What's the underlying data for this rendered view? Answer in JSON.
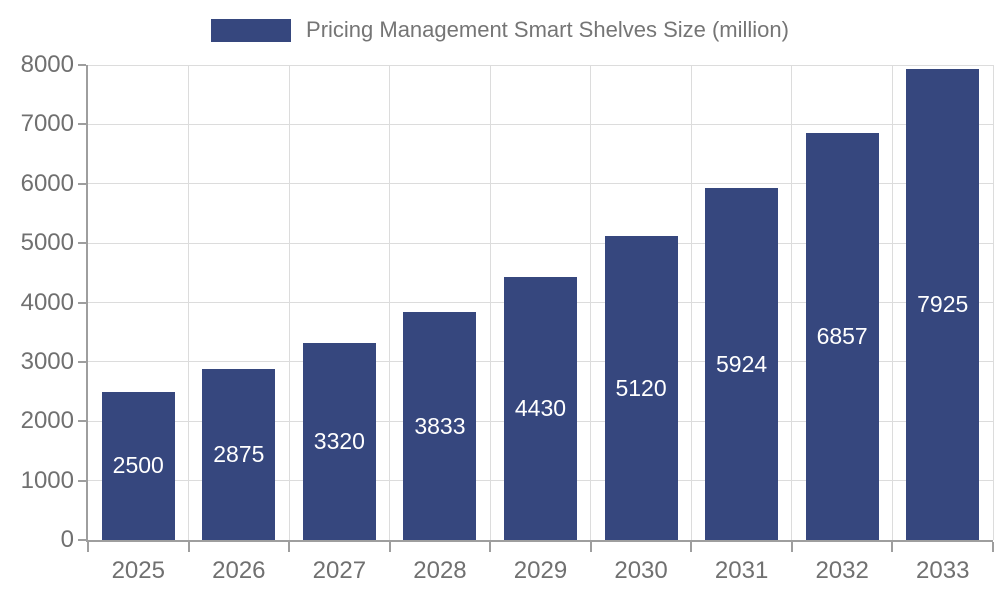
{
  "legend": {
    "label": "Pricing Management Smart Shelves Size (million)",
    "swatch_color": "#36477E"
  },
  "chart_data": {
    "type": "bar",
    "title": "Pricing Management Smart Shelves Size (million)",
    "categories": [
      "2025",
      "2026",
      "2027",
      "2028",
      "2029",
      "2030",
      "2031",
      "2032",
      "2033"
    ],
    "values": [
      2500,
      2875,
      3320,
      3833,
      4430,
      5120,
      5924,
      6857,
      7925
    ],
    "xlabel": "",
    "ylabel": "",
    "ylim": [
      0,
      8000
    ],
    "yticks": [
      0,
      1000,
      2000,
      3000,
      4000,
      5000,
      6000,
      7000,
      8000
    ],
    "grid": true,
    "legend_position": "top-center",
    "value_labels": "inside-center"
  },
  "colors": {
    "bar": "#36477E",
    "grid": "#DCDCDC",
    "axis": "#9E9E9E",
    "tick_label": "#707070",
    "value_label": "#FFFFFF",
    "legend_text": "#757575",
    "background": "#FFFFFF"
  }
}
